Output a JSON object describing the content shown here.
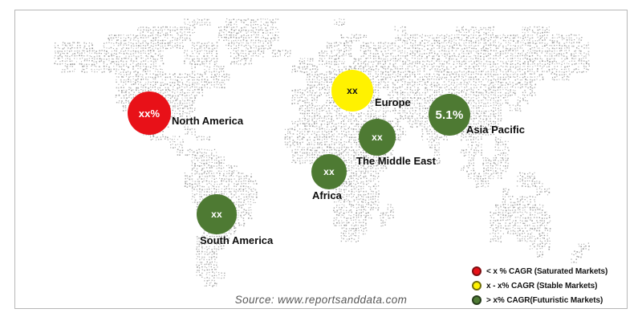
{
  "chart_data": {
    "type": "map",
    "title": "",
    "regions": [
      {
        "name": "North America",
        "value": "xx%",
        "category": "saturated"
      },
      {
        "name": "Europe",
        "value": "xx",
        "category": "stable"
      },
      {
        "name": "Asia Pacific",
        "value": "5.1%",
        "category": "futuristic"
      },
      {
        "name": "The Middle East",
        "value": "xx",
        "category": "futuristic"
      },
      {
        "name": "Africa",
        "value": "xx",
        "category": "futuristic"
      },
      {
        "name": "South America",
        "value": "xx",
        "category": "futuristic"
      }
    ],
    "legend": [
      {
        "label": "< x % CAGR (Saturated Markets)",
        "category": "saturated",
        "color": "#e81118"
      },
      {
        "label": "x - x% CAGR (Stable Markets)",
        "category": "stable",
        "color": "#fff200"
      },
      {
        "label": "> x% CAGR(Futuristic Markets)",
        "category": "futuristic",
        "color": "#4e7a33"
      }
    ],
    "legend_position": "bottom-right",
    "source": "Source: www.reportsanddata.com"
  },
  "colors": {
    "saturated": "#e81118",
    "stable": "#fff200",
    "futuristic": "#4e7a33",
    "value_text_dark_bg": "#ffffff",
    "value_text_light_bg": "#161616",
    "label_text": "#0d0d0d",
    "legend_dot_border": {
      "saturated": "#7c1013",
      "stable": "#72700a",
      "futuristic": "#273c1c"
    },
    "map_dots": [
      "#9e9e9e",
      "#ababab",
      "#b8b8b8",
      "#c6c6c6"
    ],
    "frame_border": "#b7b7b7",
    "source_text": "#585858"
  }
}
